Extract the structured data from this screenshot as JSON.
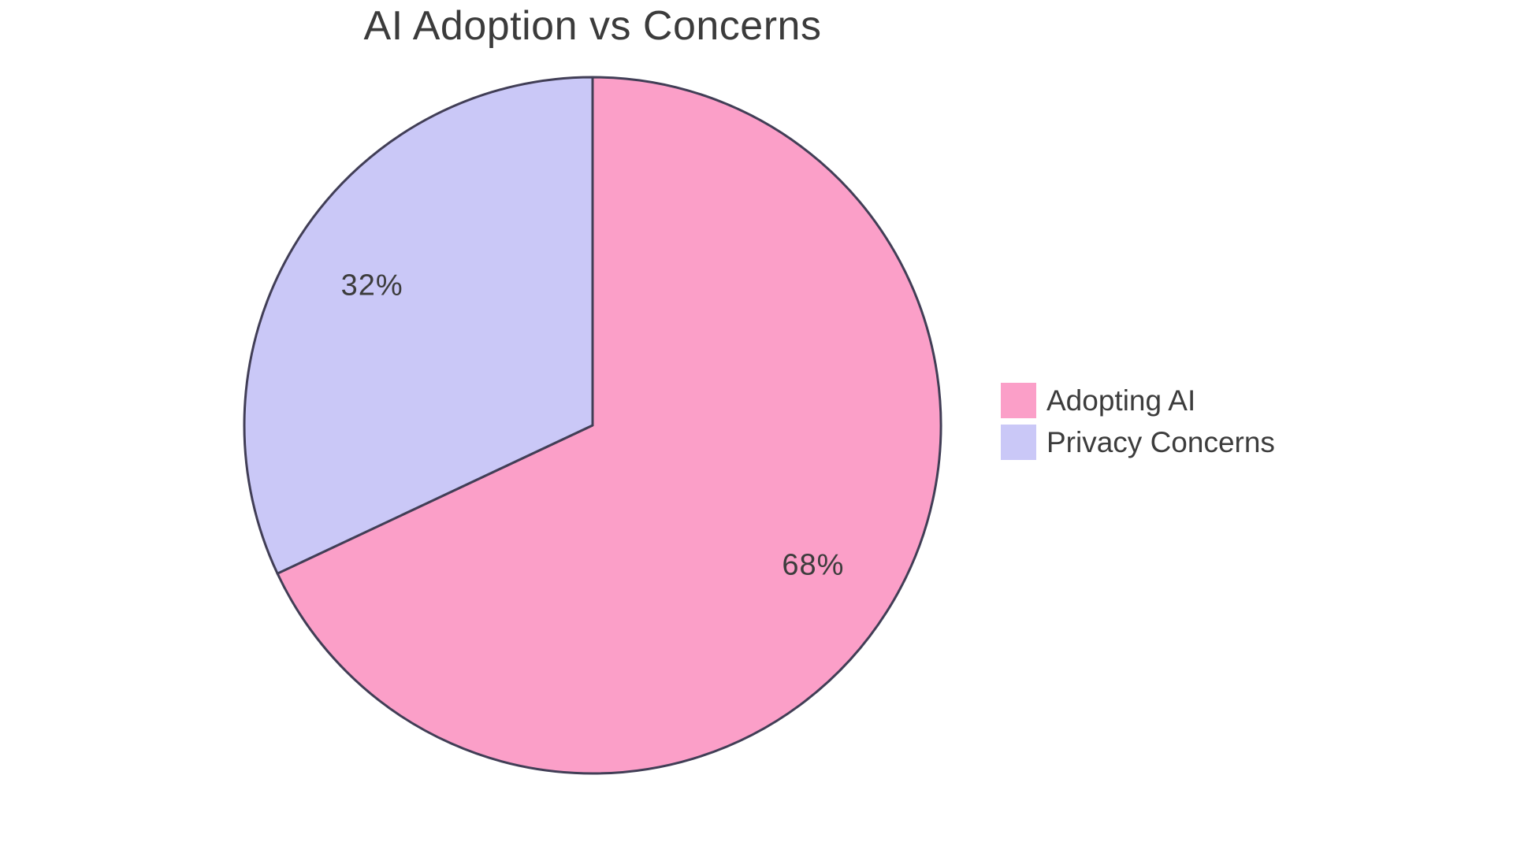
{
  "page": {
    "background": "#FFFFFF"
  },
  "chart_data": {
    "type": "pie",
    "title": "AI Adoption vs Concerns",
    "categories": [
      "Adopting AI",
      "Privacy Concerns"
    ],
    "values": [
      68,
      32
    ],
    "labels": [
      "68%",
      "32%"
    ],
    "colors": [
      "#FB9FC8",
      "#CAC8F7"
    ],
    "stroke_color": "#413E56",
    "text_color": "#3C3C3C",
    "title_color": "#3B3B3B",
    "legend_position": "right",
    "start_angle_deg": -90,
    "direction": "clockwise",
    "legend": [
      {
        "label": "Adopting AI",
        "color": "#FB9FC8"
      },
      {
        "label": "Privacy Concerns",
        "color": "#CAC8F7"
      }
    ]
  }
}
